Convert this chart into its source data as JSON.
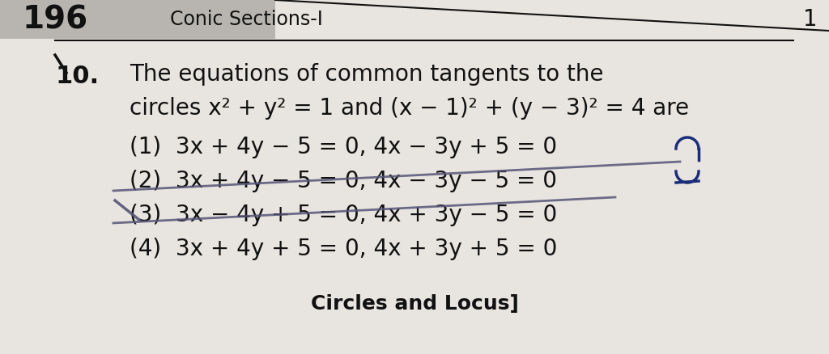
{
  "bg_color": "#d8d5d0",
  "content_bg": "#e8e5e0",
  "header_bg": "#b8b5b0",
  "header_number": "196",
  "header_title": "Conic Sections-I",
  "page_number": "1",
  "question_number": "10.",
  "question_line1": "The equations of common tangents to the",
  "question_line2": "circles x² + y² = 1 and (x − 1)² + (y − 3)² = 4 are",
  "opt1": "(1)  3x + 4y − 5 = 0, 4x − 3y + 5 = 0",
  "opt2": "(2)  3x + 4y − 5 = 0, 4x − 3y − 5 = 0",
  "opt3": "(3)  3x − 4y + 5 = 0, 4x + 3y − 5 = 0",
  "opt4": "(4)  3x + 4y + 5 = 0, 4x + 3y + 5 = 0",
  "bottom_text": "Circles and Locus]",
  "text_color": "#111111",
  "annotation_color": "#1a2d7a",
  "strikethrough_color": "#555577"
}
